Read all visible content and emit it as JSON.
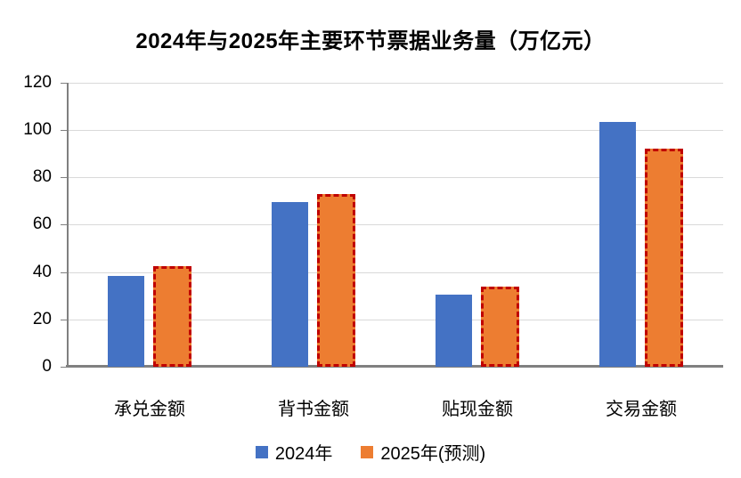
{
  "title": "2024年与2025年主要环节票据业务量（万亿元）",
  "chart_data": {
    "type": "bar",
    "title": "2024年与2025年主要环节票据业务量（万亿元）",
    "categories": [
      "承兑金额",
      "背书金额",
      "贴现金额",
      "交易金额"
    ],
    "series": [
      {
        "name": "2024年",
        "color": "#4472C4",
        "values": [
          38.4,
          69.7,
          30.5,
          103.4
        ]
      },
      {
        "name": "2025年(预测)",
        "color": "#ED7D31",
        "border_color": "#C00000",
        "border_style": "dashed",
        "values": [
          42.5,
          73.0,
          33.7,
          92.3
        ]
      }
    ],
    "xlabel": "",
    "ylabel": "",
    "ylim": [
      0,
      120
    ],
    "yticks": [
      0,
      20,
      40,
      60,
      80,
      100,
      120
    ],
    "grid": true,
    "gridline_color": "#d9d9d9",
    "axis_color": "#808080",
    "legend_position": "bottom"
  }
}
